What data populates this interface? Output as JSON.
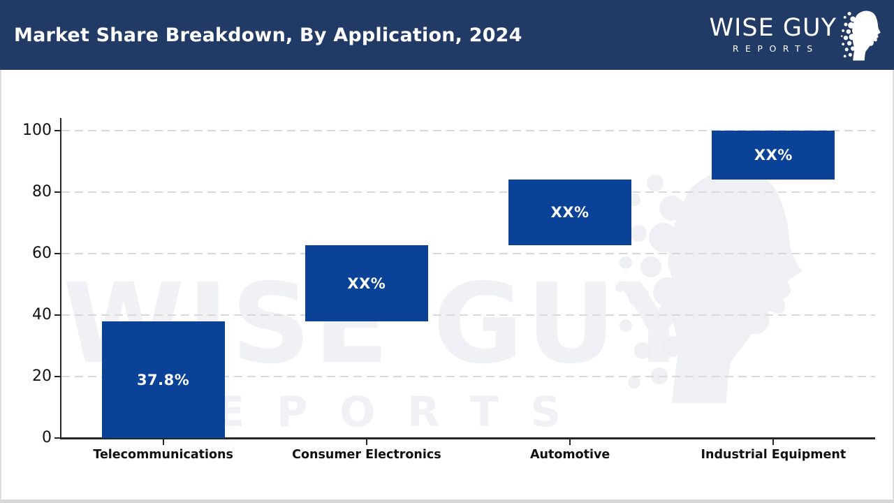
{
  "header": {
    "title": "Market Share Breakdown, By Application, 2024",
    "bg_color": "#213a66",
    "logo": {
      "line1": "WISE GUY",
      "line2": "REPORTS"
    }
  },
  "watermark": {
    "line1": "WISE GUY",
    "line2": "REPORTS"
  },
  "chart_data": {
    "type": "bar",
    "subtype": "floating-segment-waterfall",
    "title": "Market Share Breakdown, By Application, 2024",
    "categories": [
      "Telecommunications",
      "Consumer Electronics",
      "Automotive",
      "Industrial Equipment"
    ],
    "series": [
      {
        "name": "Telecommunications",
        "start": 0,
        "end": 37.8,
        "label": "37.8%"
      },
      {
        "name": "Consumer Electronics",
        "start": 37.8,
        "end": 62.6,
        "label": "XX%"
      },
      {
        "name": "Automotive",
        "start": 62.6,
        "end": 83.9,
        "label": "XX%"
      },
      {
        "name": "Industrial Equipment",
        "start": 83.9,
        "end": 100,
        "label": "XX%"
      }
    ],
    "yticks": [
      0,
      20,
      40,
      60,
      80,
      100
    ],
    "ylim": [
      0,
      103.7
    ],
    "grid": "horizontal-dashed",
    "legend": "none",
    "bar_color": "#0a4297",
    "bar_label_color": "#ffffff",
    "axis_color": "#262626",
    "grid_color": "#d9d9d9"
  }
}
